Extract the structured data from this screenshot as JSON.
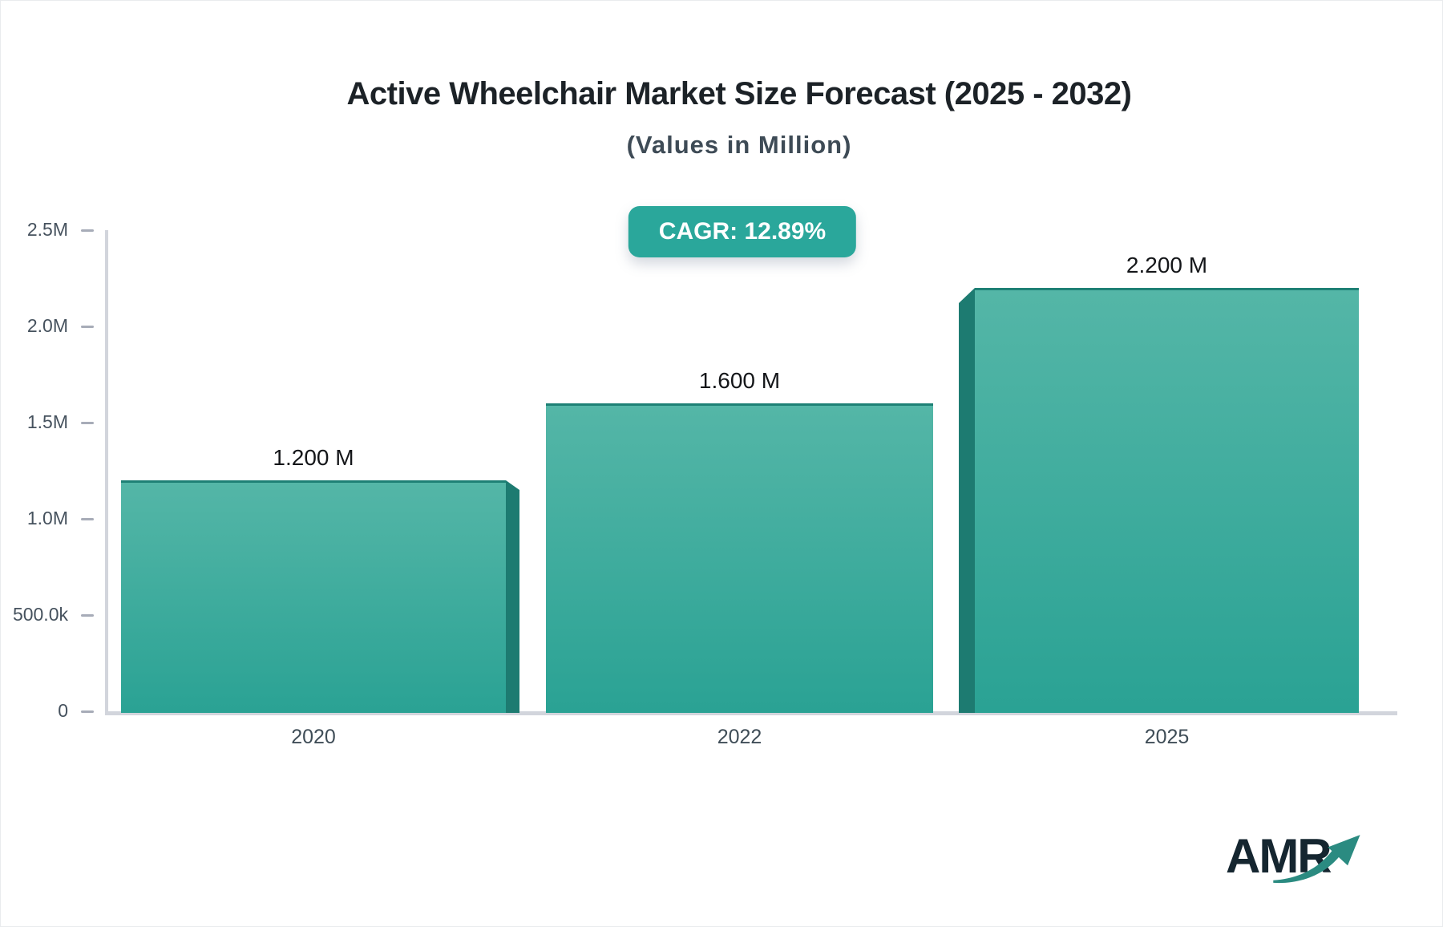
{
  "title": "Active Wheelchair Market Size Forecast (2025 - 2032)",
  "subtitle": "(Values in Million)",
  "badge": "CAGR: 12.89%",
  "logo": {
    "text": "AMR",
    "icon": "trend-arrow-icon"
  },
  "colors": {
    "badge_teal": "#2aa79b",
    "bar_gradient_top": "#54b6a7",
    "bar_gradient_bottom": "#2aa294",
    "bar_side": "#1d7b71",
    "bar_top_edge": "#1e8075",
    "axis_line": "#d2d5dc",
    "tick": "#a7acb8",
    "axis_label": "#46525e",
    "x_label": "#3f4d57",
    "title": "#1c2227",
    "subtitle": "#3e4b56",
    "value_label": "#141619",
    "logo_dark": "#152630",
    "logo_teal": "#2b8b81"
  },
  "chart_data": {
    "type": "bar",
    "title": "Active Wheelchair Market Size Forecast (2025 - 2032)",
    "subtitle": "(Values in Million)",
    "annotation": "CAGR: 12.89%",
    "cagr_percent": 12.89,
    "categories": [
      "2020",
      "2022",
      "2025"
    ],
    "values": [
      1200000,
      1600000,
      2200000
    ],
    "values_million": [
      1.2,
      1.6,
      2.2
    ],
    "bar_value_labels": [
      "1.200 M",
      "1.600 M",
      "2.200 M"
    ],
    "xlabel": "",
    "ylabel": "",
    "ylim_million": [
      0,
      2.5
    ],
    "yticks": [
      {
        "value_million": 0,
        "label": "0"
      },
      {
        "value_million": 0.5,
        "label": "500.0k"
      },
      {
        "value_million": 1.0,
        "label": "1.0M"
      },
      {
        "value_million": 1.5,
        "label": "1.5M"
      },
      {
        "value_million": 2.0,
        "label": "2.0M"
      },
      {
        "value_million": 2.5,
        "label": "2.5M"
      }
    ],
    "grid": false,
    "legend": false
  }
}
